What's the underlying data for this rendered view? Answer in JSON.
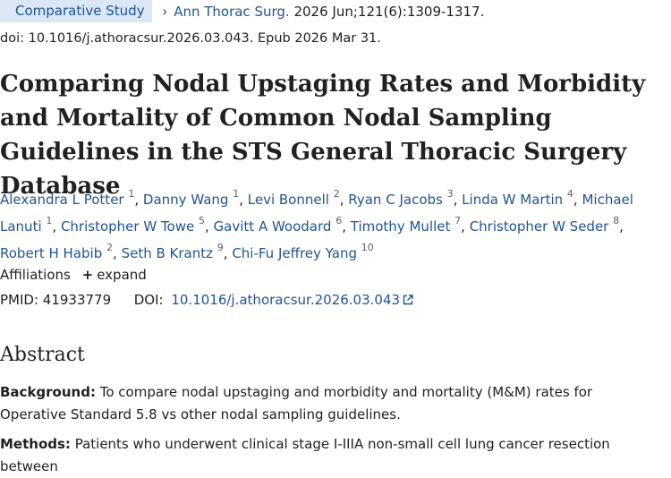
{
  "article": {
    "publication_type": "Comparative Study",
    "journal": "Ann Thorac Surg.",
    "citation": "2026 Jun;121(6):1309-1317.",
    "doi_line": "doi: 10.1016/j.athoracsur.2026.03.043. Epub 2026 Mar 31.",
    "title": "Comparing Nodal Upstaging Rates and Morbidity and Mortality of Common Nodal Sampling Guidelines in the STS General Thoracic Surgery Database",
    "authors": [
      {
        "name": "Alexandra L Potter",
        "aff": "1"
      },
      {
        "name": "Danny Wang",
        "aff": "1"
      },
      {
        "name": "Levi Bonnell",
        "aff": "2"
      },
      {
        "name": "Ryan C Jacobs",
        "aff": "3"
      },
      {
        "name": "Linda W Martin",
        "aff": "4"
      },
      {
        "name": "Michael Lanuti",
        "aff": "1"
      },
      {
        "name": "Christopher W Towe",
        "aff": "5"
      },
      {
        "name": "Gavitt A Woodard",
        "aff": "6"
      },
      {
        "name": "Timothy Mullet",
        "aff": "7"
      },
      {
        "name": "Christopher W Seder",
        "aff": "8"
      },
      {
        "name": "Robert H Habib",
        "aff": "2"
      },
      {
        "name": "Seth B Krantz",
        "aff": "9"
      },
      {
        "name": "Chi-Fu Jeffrey Yang",
        "aff": "10"
      }
    ],
    "affiliations_label": "Affiliations",
    "expand_label": "expand",
    "pmid_label": "PMID:",
    "pmid": "41933779",
    "doi_label": "DOI:",
    "doi": "10.1016/j.athoracsur.2026.03.043"
  },
  "abstract": {
    "heading": "Abstract",
    "background_label": "Background:",
    "background_text": "To compare nodal upstaging and morbidity and mortality (M&M) rates for Operative Standard 5.8 vs other nodal sampling guidelines.",
    "methods_label": "Methods:",
    "methods_text": "Patients who underwent clinical stage I-IIIA non-small cell lung cancer resection between"
  },
  "icons": {
    "chevron": "chevron-right-icon",
    "plus": "plus-icon",
    "external": "external-link-icon"
  },
  "colors": {
    "link": "#205493",
    "badge_bg": "#dbe7f5",
    "text": "#212121"
  }
}
